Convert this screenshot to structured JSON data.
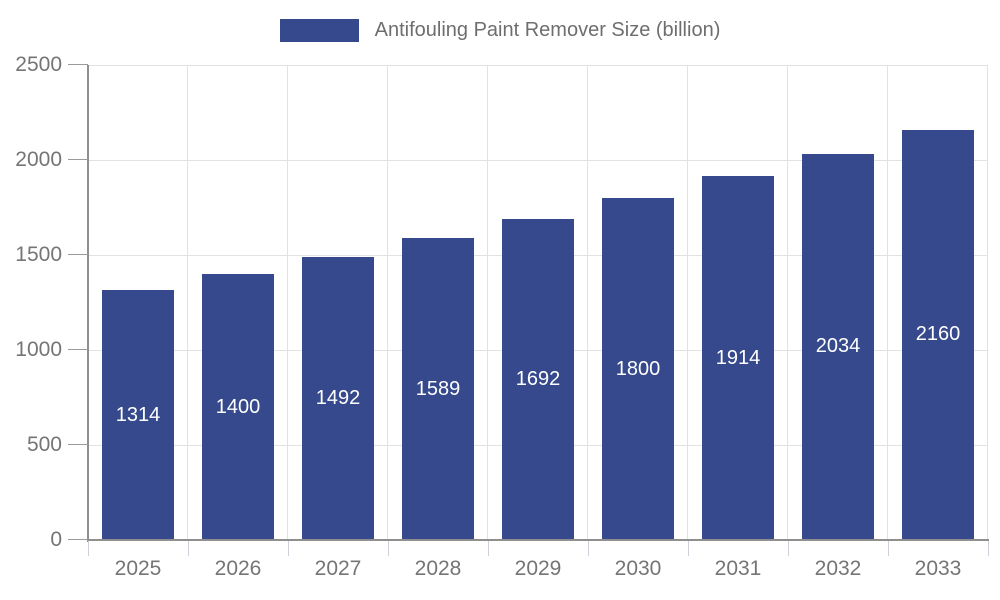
{
  "chart_data": {
    "type": "bar",
    "title": "Antifouling Paint Remover Size (billion)",
    "categories": [
      "2025",
      "2026",
      "2027",
      "2028",
      "2029",
      "2030",
      "2031",
      "2032",
      "2033"
    ],
    "values": [
      1314,
      1400,
      1492,
      1589,
      1692,
      1800,
      1914,
      2034,
      2160
    ],
    "xlabel": "",
    "ylabel": "",
    "ylim": [
      0,
      2500
    ],
    "yticks": [
      0,
      500,
      1000,
      1500,
      2000,
      2500
    ],
    "grid": true,
    "legend_position": "top-center",
    "bar_color": "#36498c",
    "value_label_color": "#ffffff",
    "axis_color": "#8f8f8f",
    "grid_color": "#e2e2e2",
    "tick_label_color": "#757575",
    "legend_text_color": "#6e6e6e"
  }
}
